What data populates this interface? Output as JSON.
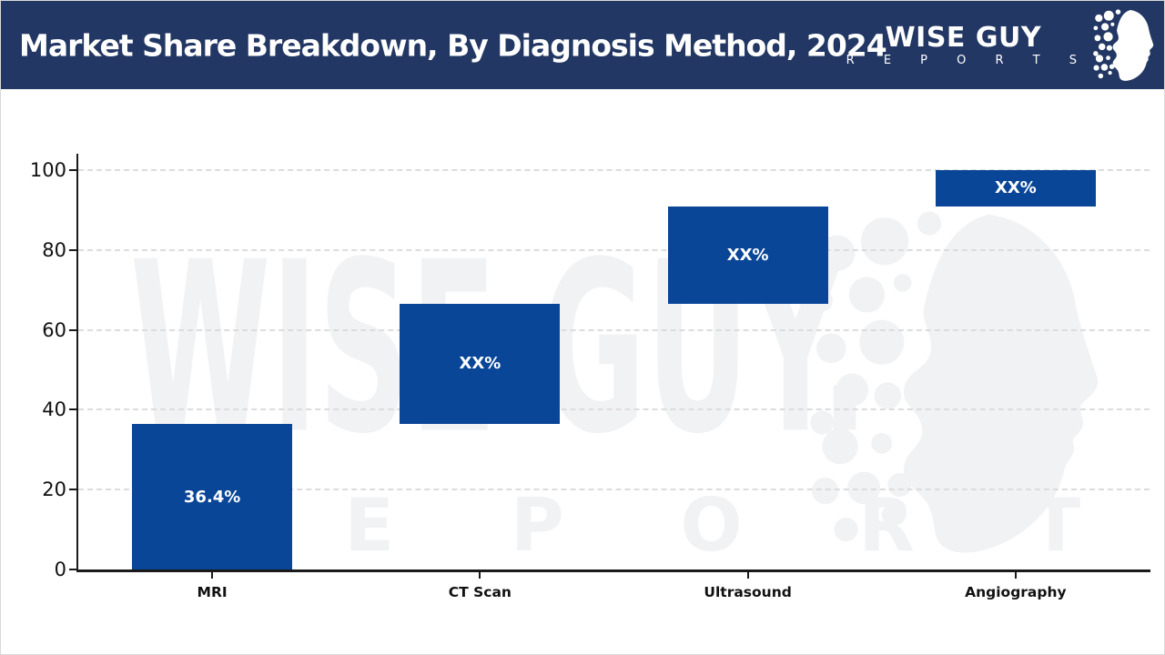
{
  "header": {
    "title": "Market Share Breakdown, By Diagnosis Method, 2024",
    "brand": {
      "name": "WISE GUY",
      "tagline": "R E P O R T S"
    }
  },
  "watermark": {
    "brand": "WISE GUY.",
    "tagline": "R E P O R T S"
  },
  "chart_data": {
    "type": "bar",
    "variant": "waterfall",
    "title": "Market Share Breakdown, By Diagnosis Method, 2024",
    "categories": [
      "MRI",
      "CT Scan",
      "Ultrasound",
      "Angiography"
    ],
    "segments": [
      {
        "category": "MRI",
        "start": 0,
        "end": 36.4,
        "label": "36.4%"
      },
      {
        "category": "CT Scan",
        "start": 36.4,
        "end": 66.6,
        "label": "XX%"
      },
      {
        "category": "Ultrasound",
        "start": 66.6,
        "end": 91.0,
        "label": "XX%"
      },
      {
        "category": "Angiography",
        "start": 91.0,
        "end": 100,
        "label": "XX%"
      }
    ],
    "xlabel": "",
    "ylabel": "",
    "ylim": [
      0,
      100
    ],
    "yticks": [
      0,
      20,
      40,
      60,
      80,
      100
    ],
    "grid": "horizontal-dashed",
    "legend_position": "none",
    "bar_color": "#0A4697",
    "bar_label_color": "#FFFFFF"
  },
  "colors": {
    "header_bg": "#223763",
    "bar": "#0A4697",
    "grid": "#DCDCDC",
    "axis": "#1A1A1A",
    "watermark": "#F1F2F4",
    "page_bg": "#FFFFFF"
  }
}
